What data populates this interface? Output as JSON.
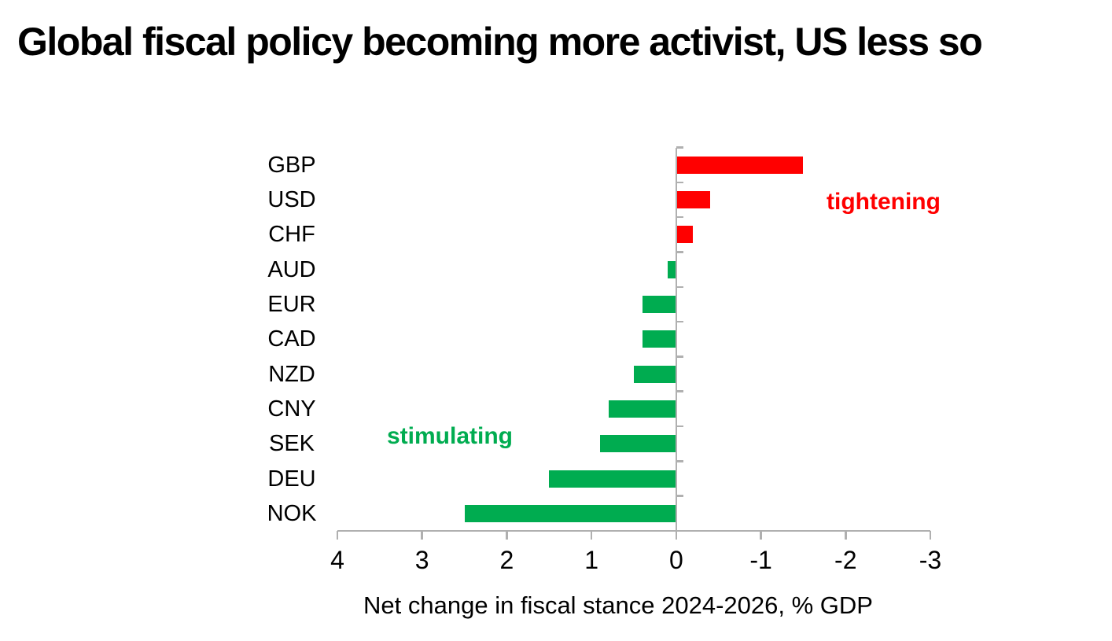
{
  "page": {
    "title": "Global fiscal policy becoming more activist, US less so"
  },
  "chart_data": {
    "type": "bar",
    "orientation": "horizontal",
    "title": "Global fiscal policy becoming more activist, US less so",
    "xlabel": "Net change in fiscal stance 2024-2026, % GDP",
    "categories": [
      "GBP",
      "USD",
      "CHF",
      "AUD",
      "EUR",
      "CAD",
      "NZD",
      "CNY",
      "SEK",
      "DEU",
      "NOK"
    ],
    "values": [
      -1.5,
      -0.4,
      -0.2,
      0.1,
      0.4,
      0.4,
      0.5,
      0.8,
      0.9,
      1.5,
      2.5
    ],
    "x_ticks": [
      4,
      3,
      2,
      1,
      0,
      -1,
      -2,
      -3
    ],
    "x_axis_left_value": 4,
    "x_axis_right_value": -3,
    "axis_reversed": true,
    "grid": false,
    "annotations": [
      {
        "id": "tightening",
        "text": "tightening",
        "color": "#ff0000"
      },
      {
        "id": "stimulating",
        "text": "stimulating",
        "color": "#00ac50"
      }
    ],
    "colors": {
      "positive_bar": "#00ac50",
      "negative_bar": "#ff0000",
      "axis": "#b0b0b0",
      "text": "#000000"
    }
  }
}
